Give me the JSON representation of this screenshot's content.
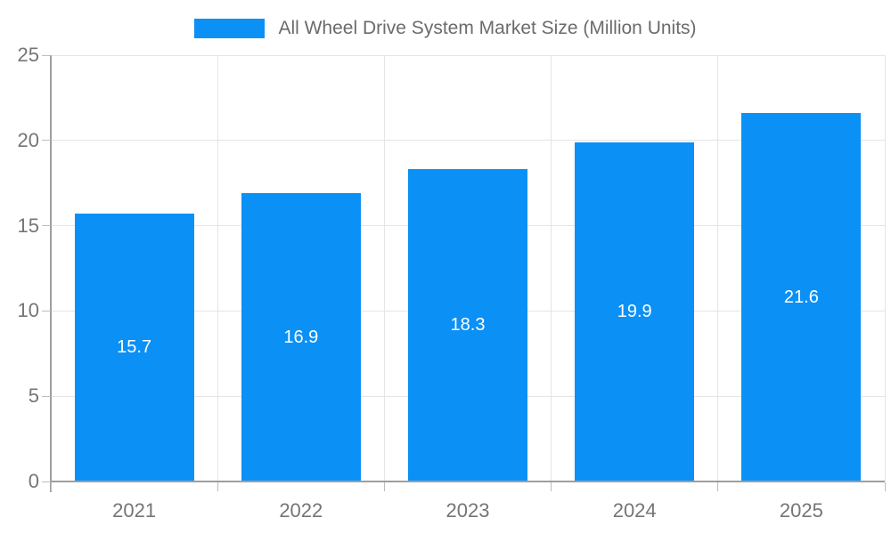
{
  "chart_data": {
    "type": "bar",
    "title": "All Wheel Drive System Market Size (Million Units)",
    "categories": [
      "2021",
      "2022",
      "2023",
      "2024",
      "2025"
    ],
    "values": [
      15.7,
      16.9,
      18.3,
      19.9,
      21.6
    ],
    "value_labels": [
      "15.7",
      "16.9",
      "18.3",
      "19.9",
      "21.6"
    ],
    "xlabel": "",
    "ylabel": "",
    "ylim": [
      0,
      25
    ],
    "yticks": [
      0,
      5,
      10,
      15,
      20,
      25
    ],
    "legend_position": "top",
    "grid": true,
    "colors": {
      "bar": "#0b90f6",
      "value_label": "#ffffff",
      "axis_text": "#757575",
      "legend_text": "#6b6b6b",
      "gridline": "#e5e5e5",
      "axis_line": "#9e9e9e"
    }
  }
}
